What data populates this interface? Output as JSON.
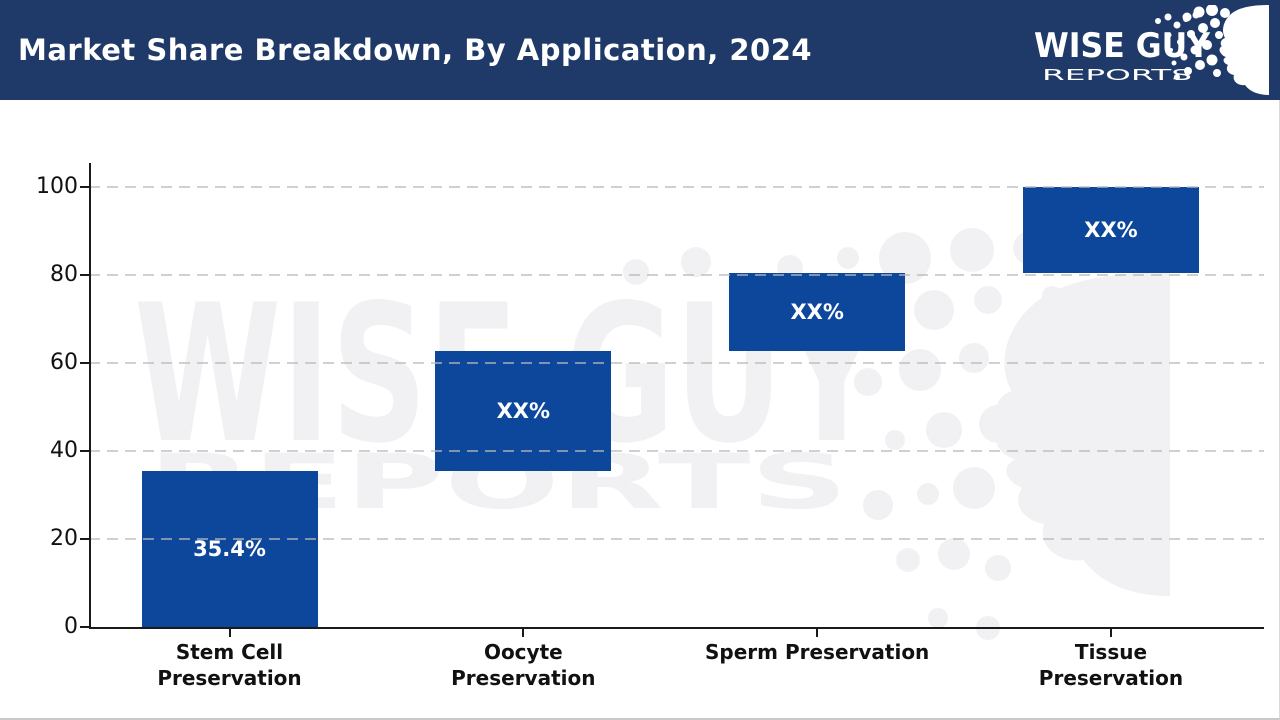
{
  "header": {
    "title": "Market Share Breakdown, By Application, 2024",
    "logo": {
      "brand": "WISE GUY",
      "sub": "REPORTS"
    }
  },
  "watermark": {
    "brand": "WISE GUY",
    "sub": "REPORTS"
  },
  "chart_data": {
    "type": "bar",
    "subtype": "stacked-waterfall-percentage",
    "title": "Market Share Breakdown, By Application, 2024",
    "categories": [
      "Stem Cell\nPreservation",
      "Oocyte\nPreservation",
      "Sperm Preservation",
      "Tissue\nPreservation"
    ],
    "segments": [
      {
        "category": "Stem Cell Preservation",
        "start": 0,
        "end": 35.4,
        "label": "35.4%"
      },
      {
        "category": "Oocyte Preservation",
        "start": 35.4,
        "end": 62.7,
        "label": "XX%"
      },
      {
        "category": "Sperm Preservation",
        "start": 62.7,
        "end": 80.5,
        "label": "XX%"
      },
      {
        "category": "Tissue Preservation",
        "start": 80.5,
        "end": 100,
        "label": "XX%"
      }
    ],
    "xlabel": "",
    "ylabel": "",
    "ylim": [
      0,
      100
    ],
    "yticks": [
      0,
      20,
      40,
      60,
      80,
      100
    ],
    "grid": "horizontal-dashed",
    "legend": null,
    "bar_color": "#0c479c",
    "bar_label_color": "#ffffff"
  },
  "colors": {
    "header_bg": "#1f3a68",
    "bar": "#0c479c",
    "axis": "#1a1a1a",
    "gridline": "#bfbfbf",
    "watermark": "#f1f1f4",
    "page_bg": "#ffffff"
  }
}
